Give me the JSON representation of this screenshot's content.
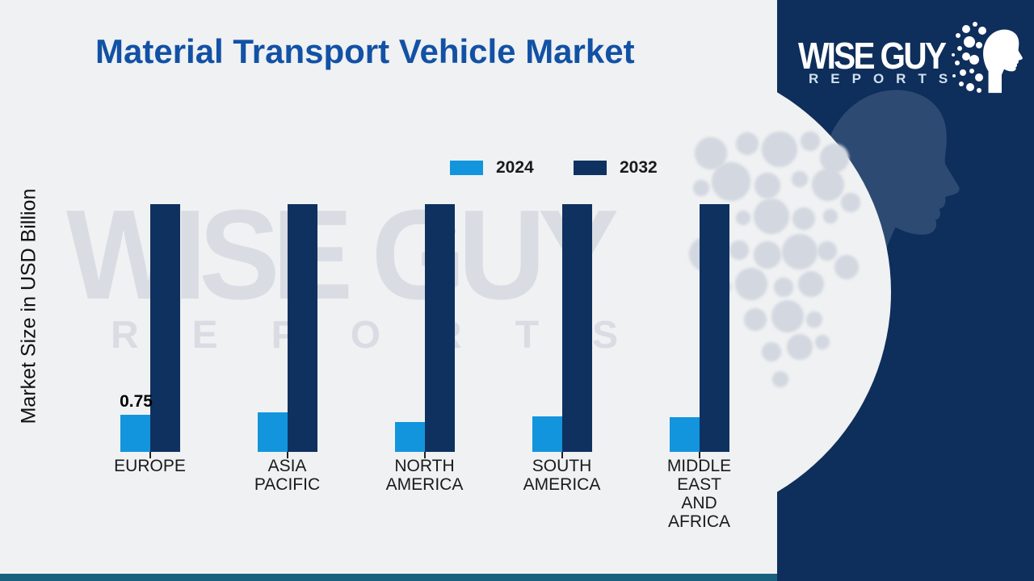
{
  "title": "Material Transport Vehicle Market",
  "y_axis_label": "Market Size in USD Billion",
  "brand": {
    "line1": "WISE GUY",
    "line2": "REPORTS"
  },
  "watermark": {
    "line1": "WISE GUY",
    "line2": "REPORTS"
  },
  "legend": [
    {
      "label": "2024",
      "color": "#1295dd"
    },
    {
      "label": "2032",
      "color": "#0f3160"
    }
  ],
  "chart_data": {
    "type": "bar",
    "title": "Material Transport Vehicle Market",
    "ylabel": "Market Size in USD Billion",
    "xlabel": "",
    "ylim": [
      0,
      5.6
    ],
    "grid": false,
    "legend_position": "top",
    "categories": [
      "EUROPE",
      "ASIA PACIFIC",
      "NORTH AMERICA",
      "SOUTH AMERICA",
      "MIDDLE EAST AND AFRICA"
    ],
    "categories_lines": [
      [
        "EUROPE"
      ],
      [
        "ASIA",
        "PACIFIC"
      ],
      [
        "NORTH",
        "AMERICA"
      ],
      [
        "SOUTH",
        "AMERICA"
      ],
      [
        "MIDDLE",
        "EAST",
        "AND",
        "AFRICA"
      ]
    ],
    "series": [
      {
        "name": "2024",
        "color": "#1295dd",
        "values": [
          0.75,
          0.8,
          0.6,
          0.72,
          0.7
        ]
      },
      {
        "name": "2032",
        "color": "#0f3160",
        "values": [
          5.0,
          5.0,
          5.0,
          5.0,
          5.0
        ]
      }
    ],
    "annotation": {
      "series": "2024",
      "category": "EUROPE",
      "text": "0.75"
    }
  },
  "colors": {
    "background": "#eff1f2",
    "title": "#1251a5",
    "panel": "#0e2e5b",
    "panel_face": "#2d4a73",
    "bar_2024": "#1295dd",
    "bar_2032": "#0f3160",
    "bottom_strip": "#19607f",
    "watermark": "#d9dce3"
  }
}
